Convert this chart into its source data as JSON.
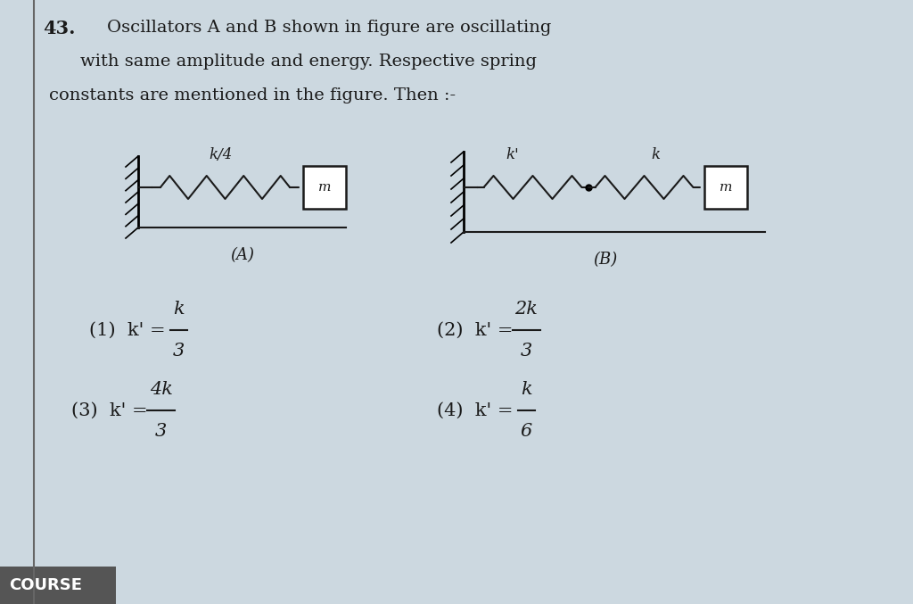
{
  "background_color": "#ccd8e0",
  "text_color": "#1a1a1a",
  "wall_color": "#1a1a1a",
  "spring_color": "#1a1a1a",
  "box_color": "#1a1a1a",
  "floor_color": "#1a1a1a",
  "title_number": "43.",
  "line1": "Oscillators A and B shown in figure are oscillating",
  "line2": "with same amplitude and energy. Respective spring",
  "line3": "constants are mentioned in the figure. Then :-",
  "spring_label_A": "k/4",
  "spring_label_B_left": "k'",
  "spring_label_B_right": "k",
  "mass_label": "m",
  "diagram_A_label": "(A)",
  "diagram_B_label": "(B)",
  "footer": "COURSE",
  "left_border_color": "#666666",
  "fig_width": 10.24,
  "fig_height": 6.77
}
